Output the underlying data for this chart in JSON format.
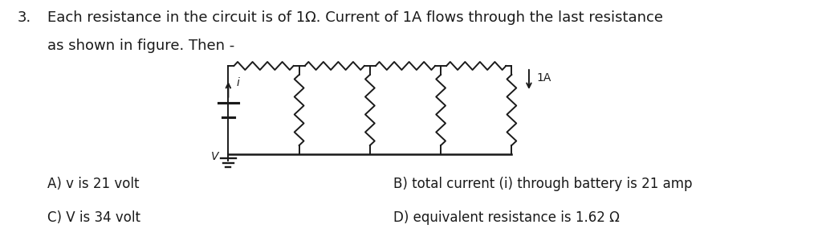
{
  "bg_color": "#ffffff",
  "text_color": "#1a1a1a",
  "question_number": "3.",
  "question_line1": "Each resistance in the circuit is of 1Ω. Current of 1A flows through the last resistance",
  "question_line2": "as shown in figure. Then -",
  "options": [
    [
      "A) v is 21 volt",
      "B) total current (i) through battery is 21 amp"
    ],
    [
      "C) V is 34 volt",
      "D) equivalent resistance is 1.62 Ω"
    ]
  ],
  "font_size_question": 13,
  "font_size_options": 12,
  "wire_color": "#1a1a1a",
  "font_weight_question": "normal",
  "font_weight_options": "normal"
}
